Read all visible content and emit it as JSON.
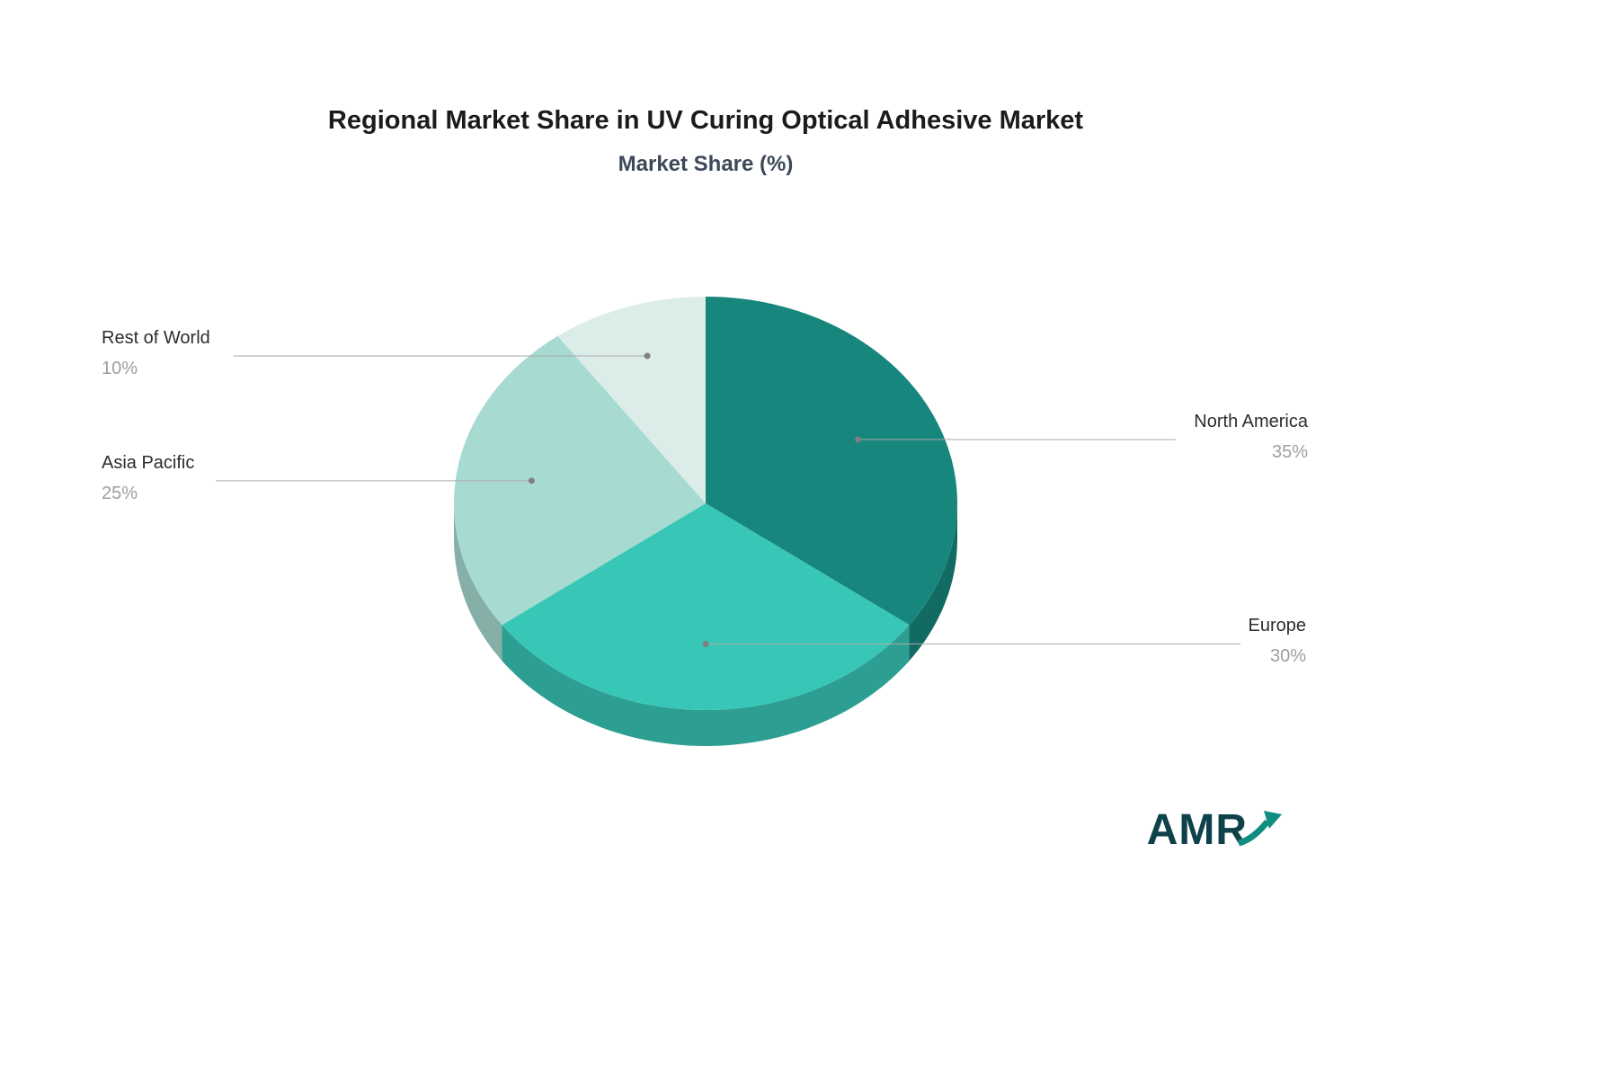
{
  "title": "Regional Market Share in UV Curing Optical Adhesive Market",
  "subtitle": "Market Share (%)",
  "logo": {
    "text": "AMR"
  },
  "chart_data": {
    "type": "pie",
    "title": "Regional Market Share in UV Curing Optical Adhesive Market",
    "subtitle": "Market Share (%)",
    "unit": "%",
    "direction": "clockwise",
    "start_angle_deg": 0,
    "effect": "3d",
    "legend_position": "none",
    "slices": [
      {
        "label": "North America",
        "value": 35,
        "display": "35%",
        "color": "#17867c"
      },
      {
        "label": "Europe",
        "value": 30,
        "display": "30%",
        "color": "#38c7b6"
      },
      {
        "label": "Asia Pacific",
        "value": 25,
        "display": "25%",
        "color": "#a7dbd2"
      },
      {
        "label": "Rest of World",
        "value": 10,
        "display": "10%",
        "color": "#dcede9"
      }
    ],
    "leader_line_color": "#aaaaaa",
    "label_color": "#2d2d2d",
    "value_color": "#9e9e9e"
  }
}
